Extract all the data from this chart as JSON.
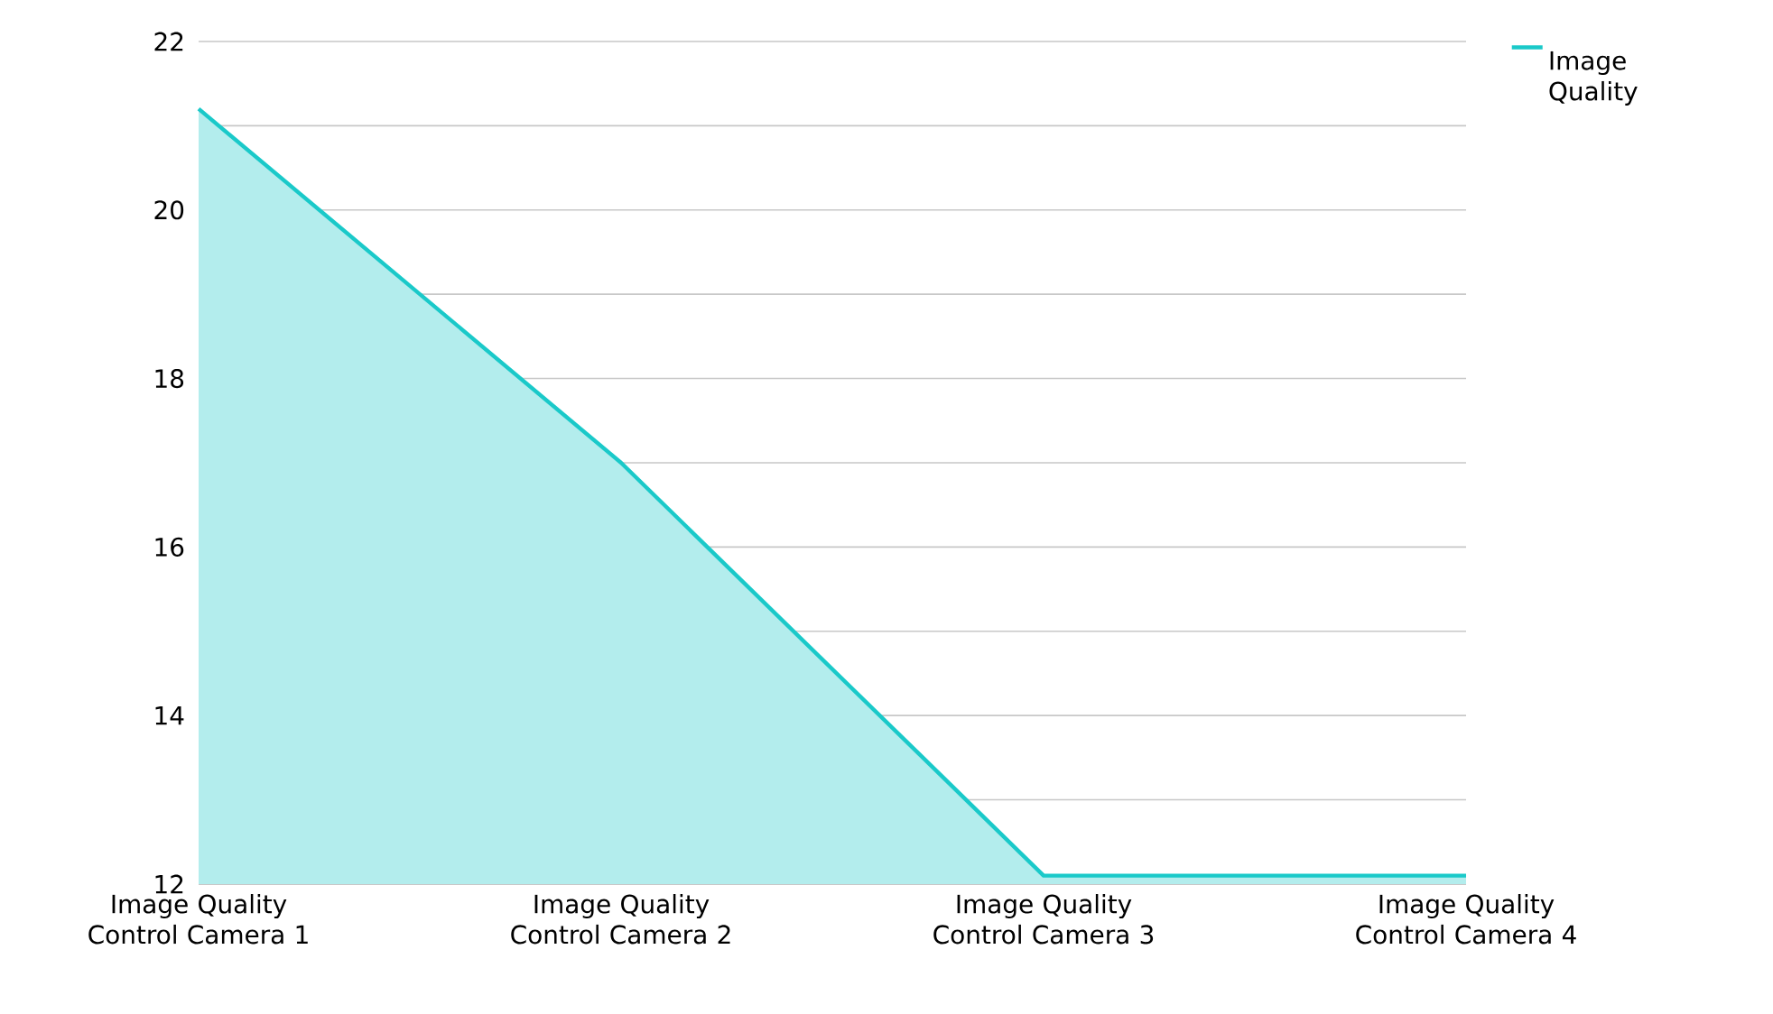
{
  "chart_data": {
    "type": "area",
    "categories": [
      "Image Quality Control Camera 1",
      "Image Quality Control Camera 2",
      "Image Quality Control Camera 3",
      "Image Quality Control Camera 4"
    ],
    "series": [
      {
        "name": "Image Quality",
        "color": "#1ac9c9",
        "values": [
          21.2,
          17.0,
          12.1,
          12.1
        ]
      }
    ],
    "ylim": [
      12,
      22
    ],
    "yticks": [
      12,
      {
        "value": 13,
        "label": null
      },
      14,
      {
        "value": 15,
        "label": null
      },
      16,
      {
        "value": 17,
        "label": null
      },
      18,
      {
        "value": 19,
        "label": null
      },
      20,
      {
        "value": 21,
        "label": null
      },
      22
    ],
    "grid": "y",
    "legend": "top right"
  }
}
